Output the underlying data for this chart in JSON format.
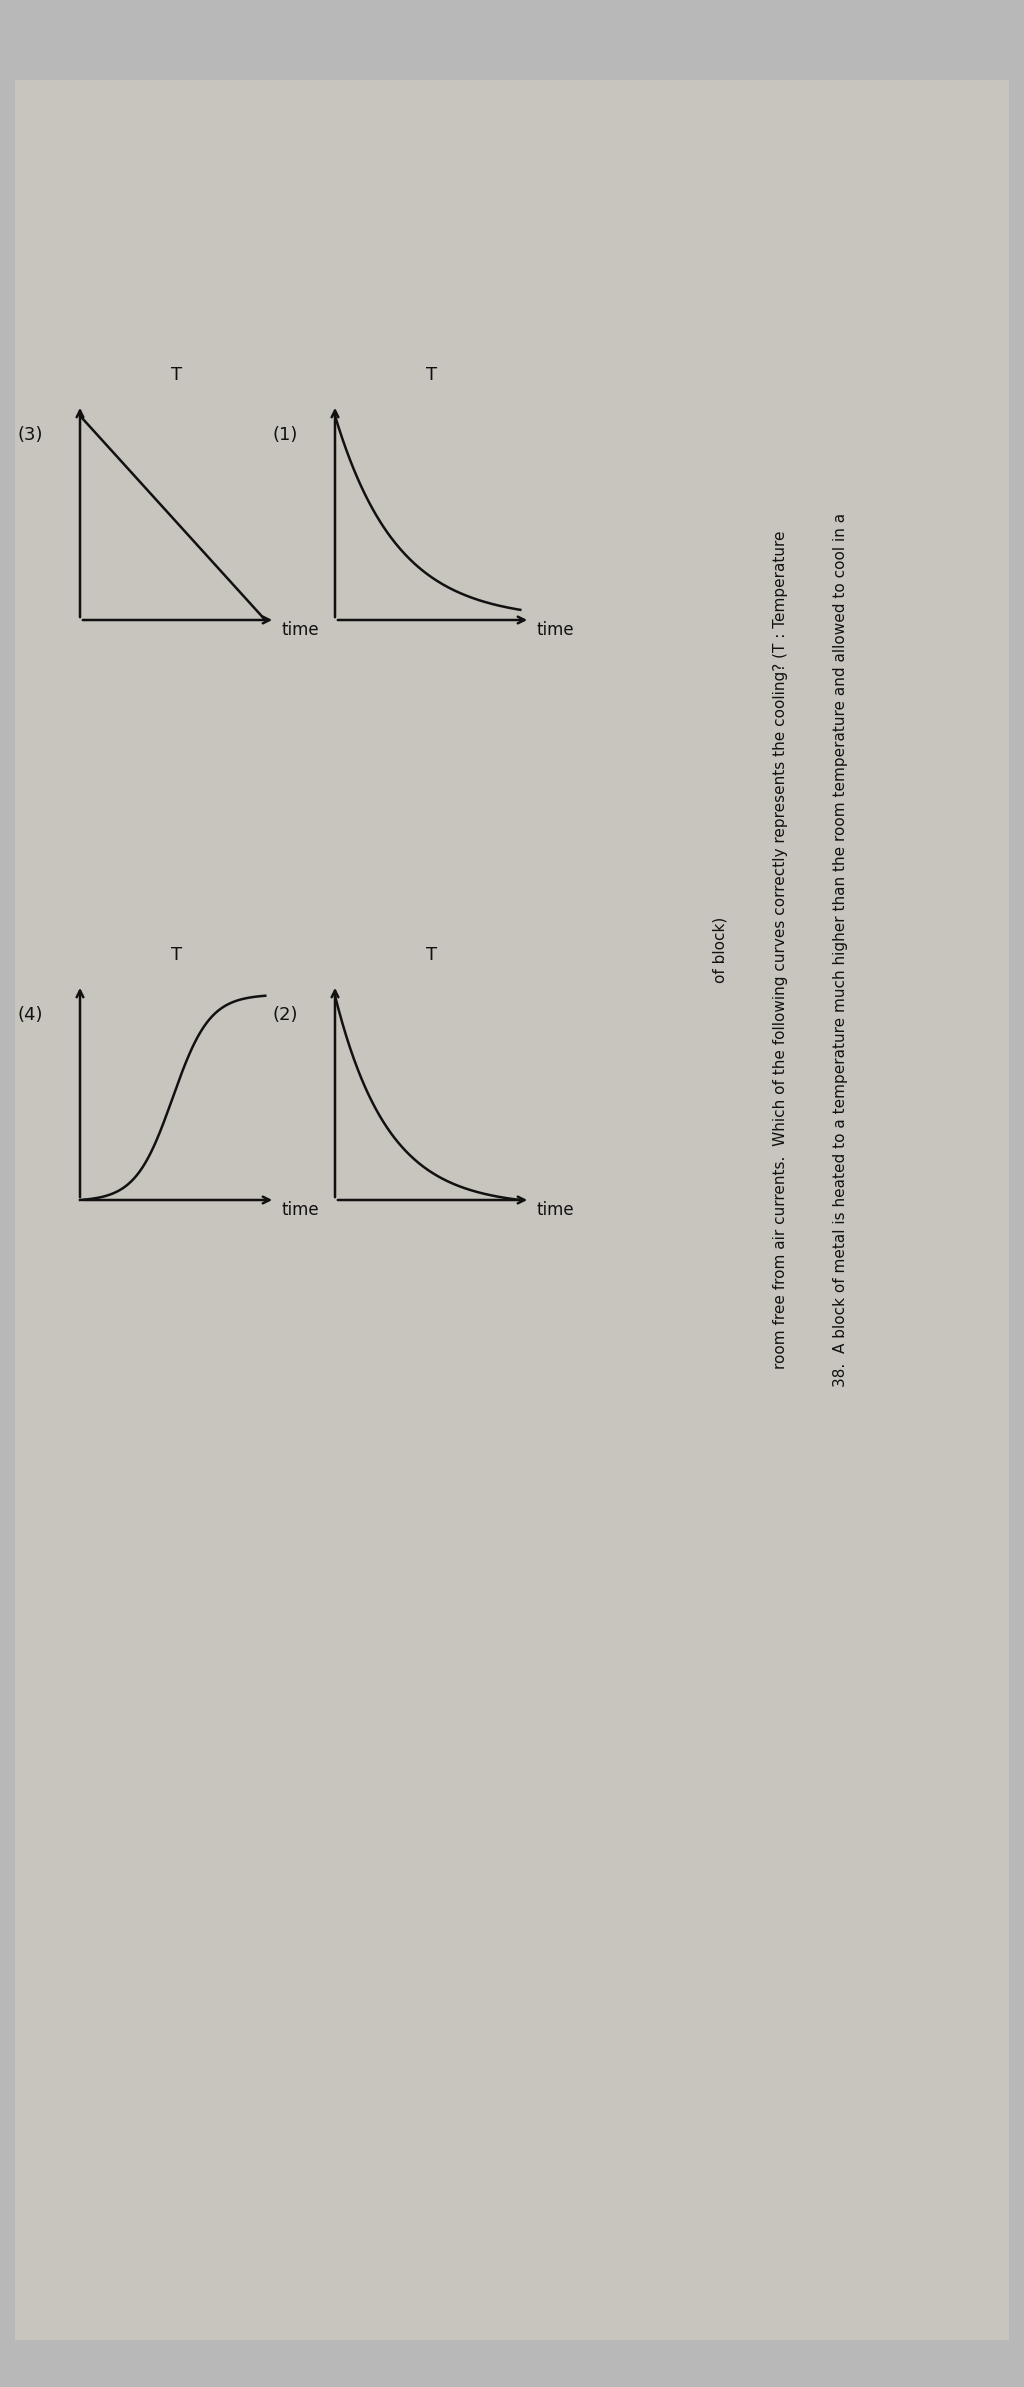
{
  "background_color": "#b8b8b8",
  "paper_color": "#c8c4be",
  "line_color": "#111111",
  "text_color": "#111111",
  "question_line1": "38.  A block of metal is heated to a temperature much higher than the room temperature and allowed to cool in a",
  "question_line2": "room free from air currents.  Which of the following curves correctly represents the cooling? (T : Temperature",
  "question_line3": "of block)",
  "graphs": [
    {
      "label": "(1)",
      "curve": "exponential_decay"
    },
    {
      "label": "(2)",
      "curve": "fast_decay_levels"
    },
    {
      "label": "(3)",
      "curve": "linear_decrease"
    },
    {
      "label": "(4)",
      "curve": "sigmoid"
    }
  ],
  "T_label": "T",
  "time_label": "time",
  "font_size_text": 11,
  "font_size_label": 12,
  "lw": 1.8
}
